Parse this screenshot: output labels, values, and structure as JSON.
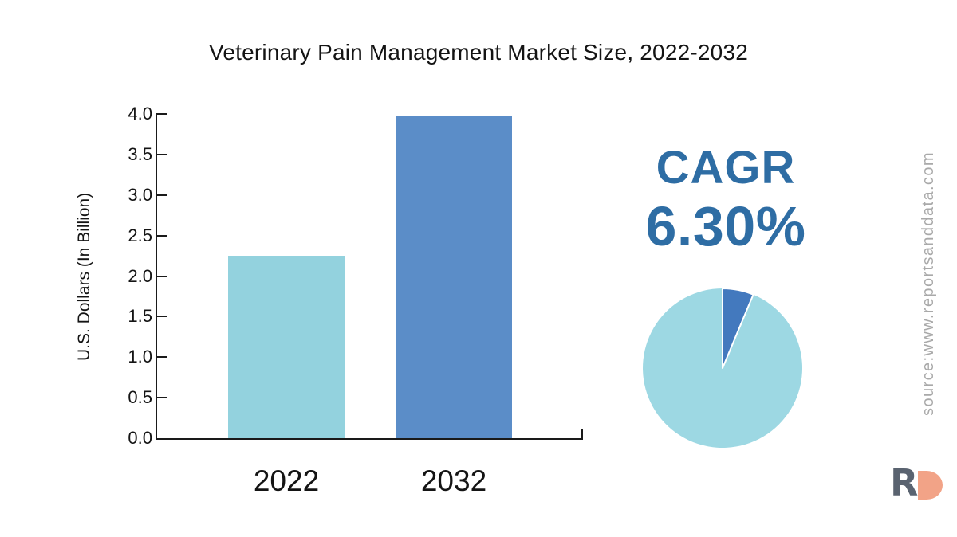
{
  "title": "Veterinary Pain Management Market Size, 2022-2032",
  "cagr": {
    "label": "CAGR",
    "value": "6.30%",
    "color": "#2e6da4"
  },
  "source": "source:www.reportsanddata.com",
  "logo": {
    "letter": "R",
    "r_color": "#5a6370",
    "d_color": "#f2a387"
  },
  "colors": {
    "bar_2022": "#93d2de",
    "bar_2032": "#5b8dc8",
    "pie_remainder": "#9dd8e3",
    "pie_cagr_slice": "#4379be",
    "axis": "#1a1a1a",
    "source_text": "#a9a9a9"
  },
  "chart_data": [
    {
      "type": "bar",
      "title": "Veterinary Pain Management Market Size, 2022-2032",
      "categories": [
        "2022",
        "2032"
      ],
      "values": [
        2.25,
        3.98
      ],
      "bar_colors": [
        "#93d2de",
        "#5b8dc8"
      ],
      "xlabel": "",
      "ylabel": "U.S. Dollars (In Billion)",
      "ylim": [
        0,
        4.0
      ],
      "yticks": [
        "0.0",
        "0.5",
        "1.0",
        "1.5",
        "2.0",
        "2.5",
        "3.0",
        "3.5",
        "4.0"
      ],
      "grid": false,
      "legend": false
    },
    {
      "type": "pie",
      "title": "CAGR 6.30%",
      "labels": [
        "CAGR share",
        "remainder"
      ],
      "values": [
        6.3,
        93.7
      ],
      "colors": [
        "#4379be",
        "#9dd8e3"
      ],
      "start": "12 o'clock, clockwise",
      "legend": false
    }
  ]
}
